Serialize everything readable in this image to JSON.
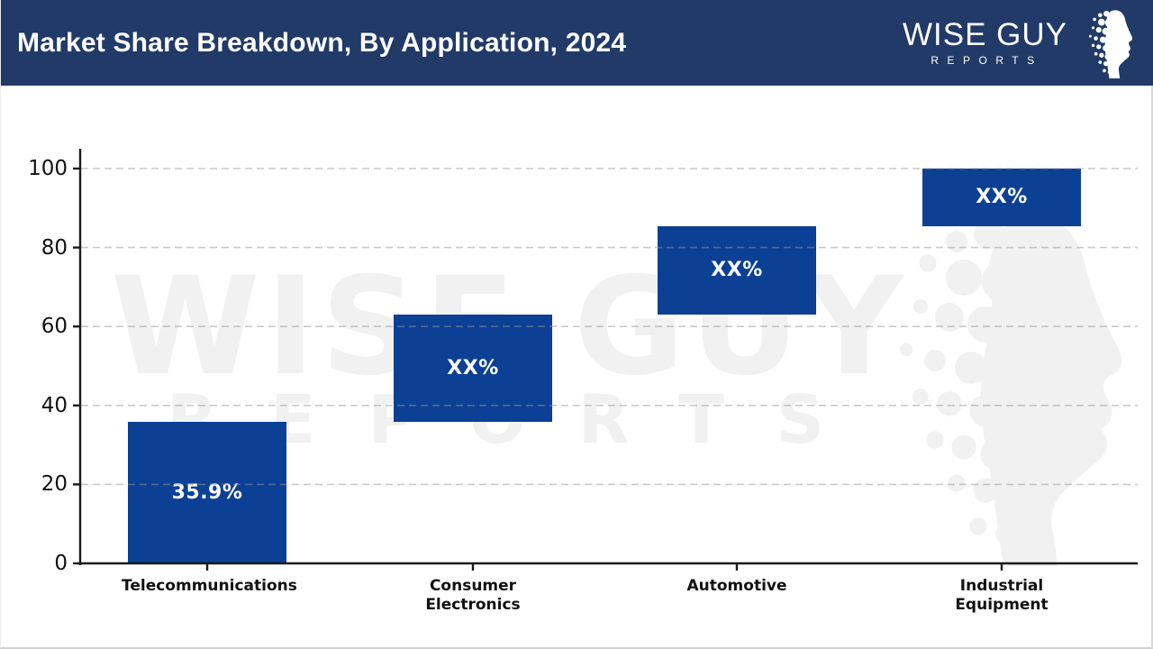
{
  "header": {
    "title": "Market Share Breakdown, By Application, 2024",
    "logo": {
      "line1": "WISE GUY",
      "line2": "REPORTS"
    }
  },
  "watermark": {
    "line1": "WISE GUY",
    "line2": "REPORTS"
  },
  "colors": {
    "header_bg": "#213a67",
    "bar": "#0b4094",
    "bar_label": "#ffffff",
    "grid": "#dcdcdc",
    "axis": "#1a1a1a",
    "watermark": "#f1f1f1"
  },
  "chart_data": {
    "type": "bar",
    "subtype": "floating-waterfall",
    "title": "Market Share Breakdown, By Application, 2024",
    "categories": [
      "Telecommunications",
      "Consumer Electronics",
      "Automotive",
      "Industrial Equipment"
    ],
    "segments": [
      {
        "category": "Telecommunications",
        "start": 0,
        "end": 35.9,
        "label": "35.9%"
      },
      {
        "category": "Consumer Electronics",
        "start": 35.9,
        "end": 63.0,
        "label": "XX%"
      },
      {
        "category": "Automotive",
        "start": 63.0,
        "end": 85.4,
        "label": "XX%"
      },
      {
        "category": "Industrial Equipment",
        "start": 85.4,
        "end": 100,
        "label": "XX%"
      }
    ],
    "xlabel": "",
    "ylabel": "",
    "ylim": [
      0,
      100
    ],
    "yticks": [
      0,
      20,
      40,
      60,
      80,
      100
    ],
    "grid": "horizontal-dashed",
    "legend": "none"
  }
}
